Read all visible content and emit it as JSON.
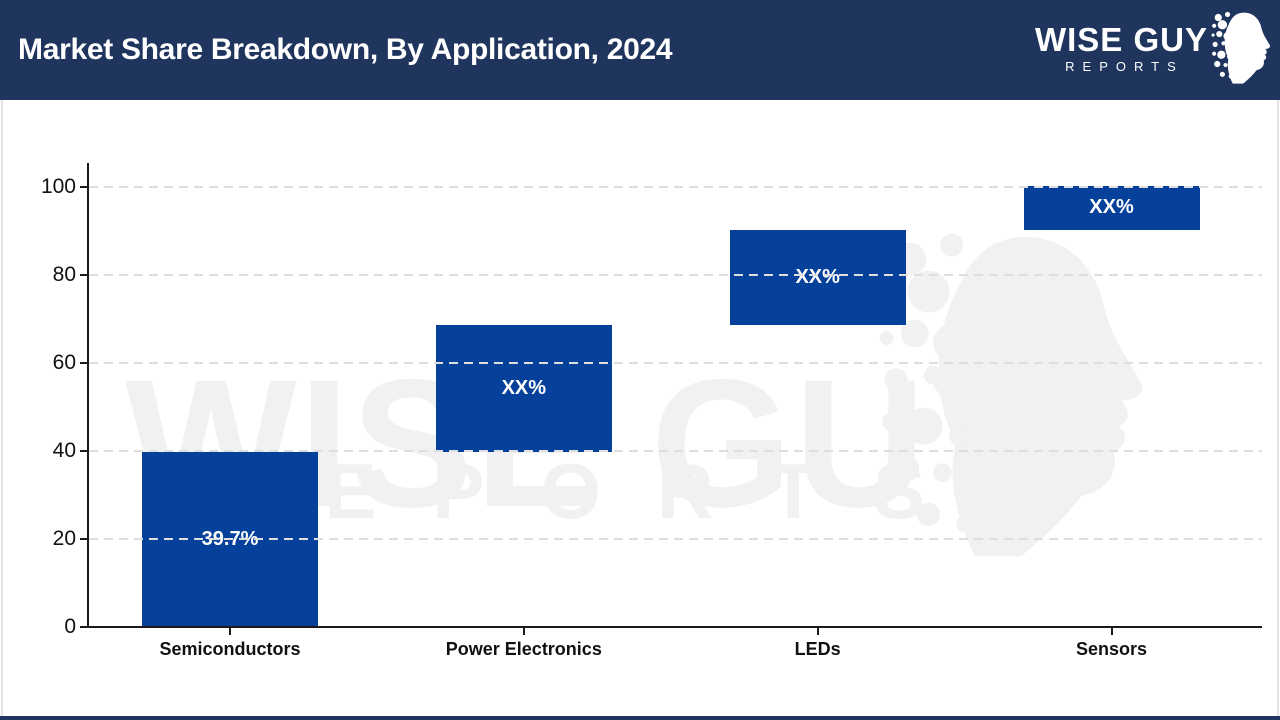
{
  "header": {
    "title": "Market Share Breakdown, By Application, 2024",
    "logo": {
      "line1": "WISE GUY",
      "line2": "REPORTS"
    }
  },
  "watermark": {
    "line1": "WISE GUY",
    "line2": "REPORTS"
  },
  "chart_data": {
    "type": "bar",
    "subtype": "waterfall",
    "title": "Market Share Breakdown, By Application, 2024",
    "categories": [
      "Semiconductors",
      "Power Electronics",
      "LEDs",
      "Sensors"
    ],
    "segments": [
      {
        "category": "Semiconductors",
        "start": 0,
        "end": 39.7,
        "label": "39.7%"
      },
      {
        "category": "Power Electronics",
        "start": 39.7,
        "end": 68.6,
        "label": "XX%"
      },
      {
        "category": "LEDs",
        "start": 68.6,
        "end": 90.1,
        "label": "XX%"
      },
      {
        "category": "Sensors",
        "start": 90.1,
        "end": 100.2,
        "label": "XX%"
      }
    ],
    "yticks": [
      0,
      20,
      40,
      60,
      80,
      100
    ],
    "ylim": [
      0,
      105
    ],
    "xlabel": "",
    "ylabel": "",
    "grid": true,
    "grid_style": "dashed",
    "legend": false,
    "bar_color": "#05409b",
    "value_label_color": "#ffffff"
  },
  "colors": {
    "header_bg": "#1f355e",
    "bar_blue": "#05409b",
    "gridline": "#dedede",
    "axis": "#1a1a1a",
    "watermark_gray": "#f1f1f3",
    "footer_bg": "#1f355e"
  }
}
